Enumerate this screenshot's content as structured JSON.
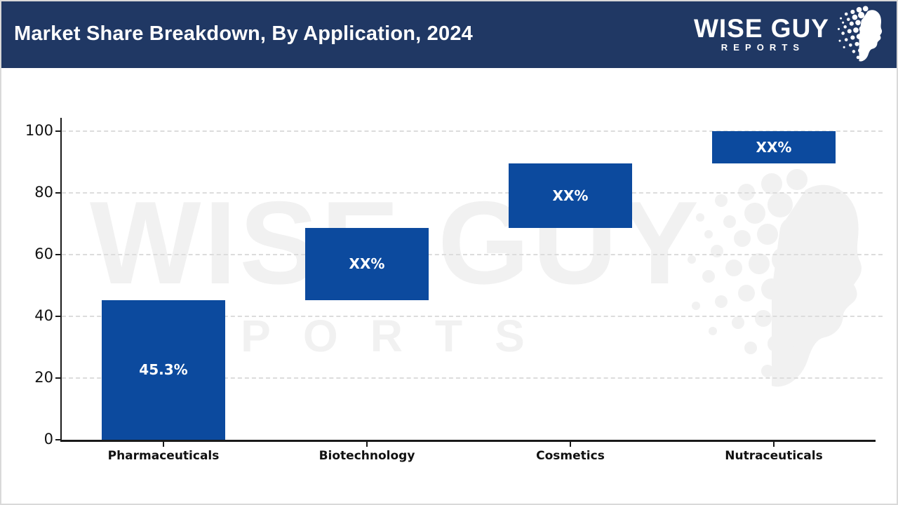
{
  "header": {
    "title": "Market Share Breakdown, By Application, 2024",
    "bg_color": "#203864",
    "logo": {
      "line1": "WISE GUY",
      "line2": "REPORTS"
    }
  },
  "watermark": {
    "line1": "WISE GUY",
    "line2": "REPORTS"
  },
  "chart_data": {
    "type": "bar",
    "subtype": "waterfall",
    "title": "Market Share Breakdown, By Application, 2024",
    "categories": [
      "Pharmaceuticals",
      "Biotechnology",
      "Cosmetics",
      "Nutraceuticals"
    ],
    "segments": [
      {
        "category": "Pharmaceuticals",
        "start": 0,
        "end": 45.3,
        "label": "45.3%"
      },
      {
        "category": "Biotechnology",
        "start": 45.3,
        "end": 68.6,
        "label": "XX%"
      },
      {
        "category": "Cosmetics",
        "start": 68.6,
        "end": 89.5,
        "label": "XX%"
      },
      {
        "category": "Nutraceuticals",
        "start": 89.5,
        "end": 100,
        "label": "XX%"
      }
    ],
    "values_pct": [
      45.3,
      23.3,
      20.9,
      10.5
    ],
    "yticks": [
      0,
      20,
      40,
      60,
      80,
      100
    ],
    "ylim": [
      0,
      105
    ],
    "xlabel": "",
    "ylabel": "",
    "legend": "none",
    "grid": "horizontal-dashed",
    "bar_color": "#0c4a9e",
    "bar_label_color": "#ffffff",
    "gridline_color": "#dcdcdc",
    "axis_color": "#1a1a1a"
  }
}
